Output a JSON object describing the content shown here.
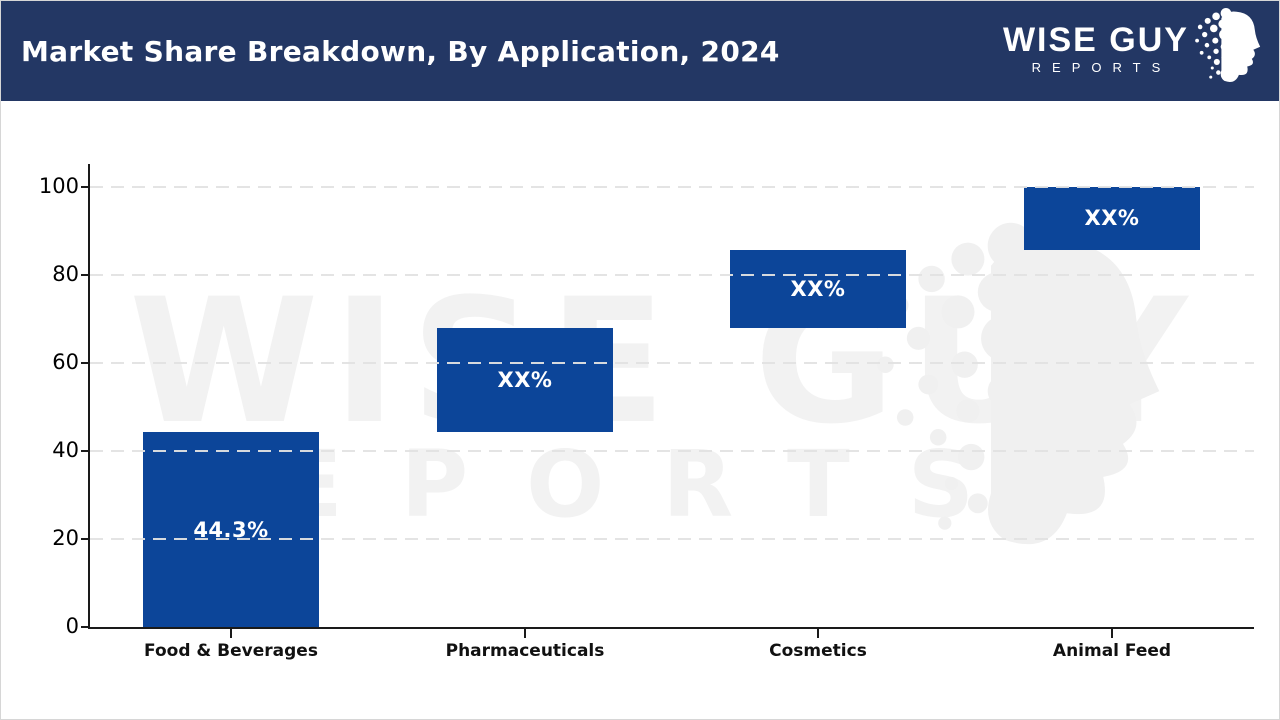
{
  "header": {
    "title": "Market Share Breakdown, By Application, 2024",
    "bg_color": "#233764",
    "logo": {
      "line1": "WISE GUY",
      "line2": "REPORTS"
    }
  },
  "watermark": {
    "line1": "WISE GUY",
    "line2": "REPORTS"
  },
  "chart_data": {
    "type": "bar",
    "subtype": "waterfall",
    "title": "Market Share Breakdown, By Application, 2024",
    "categories": [
      "Food & Beverages",
      "Pharmaceuticals",
      "Cosmetics",
      "Animal Feed"
    ],
    "segments": [
      {
        "category": "Food & Beverages",
        "start": 0,
        "end": 44.3,
        "label": "44.3%"
      },
      {
        "category": "Pharmaceuticals",
        "start": 44.3,
        "end": 68,
        "label": "XX%"
      },
      {
        "category": "Cosmetics",
        "start": 68,
        "end": 85.7,
        "label": "XX%"
      },
      {
        "category": "Animal Feed",
        "start": 85.7,
        "end": 100,
        "label": "XX%"
      }
    ],
    "xlabel": "",
    "ylabel": "",
    "yticks": [
      0,
      20,
      40,
      60,
      80,
      100
    ],
    "ylim": [
      0,
      105
    ],
    "bar_color": "#0C4599",
    "value_label_color": "#ffffff",
    "grid": "horizontal-dashed",
    "grid_color": "#e3e3e3",
    "legend_position": "none"
  }
}
